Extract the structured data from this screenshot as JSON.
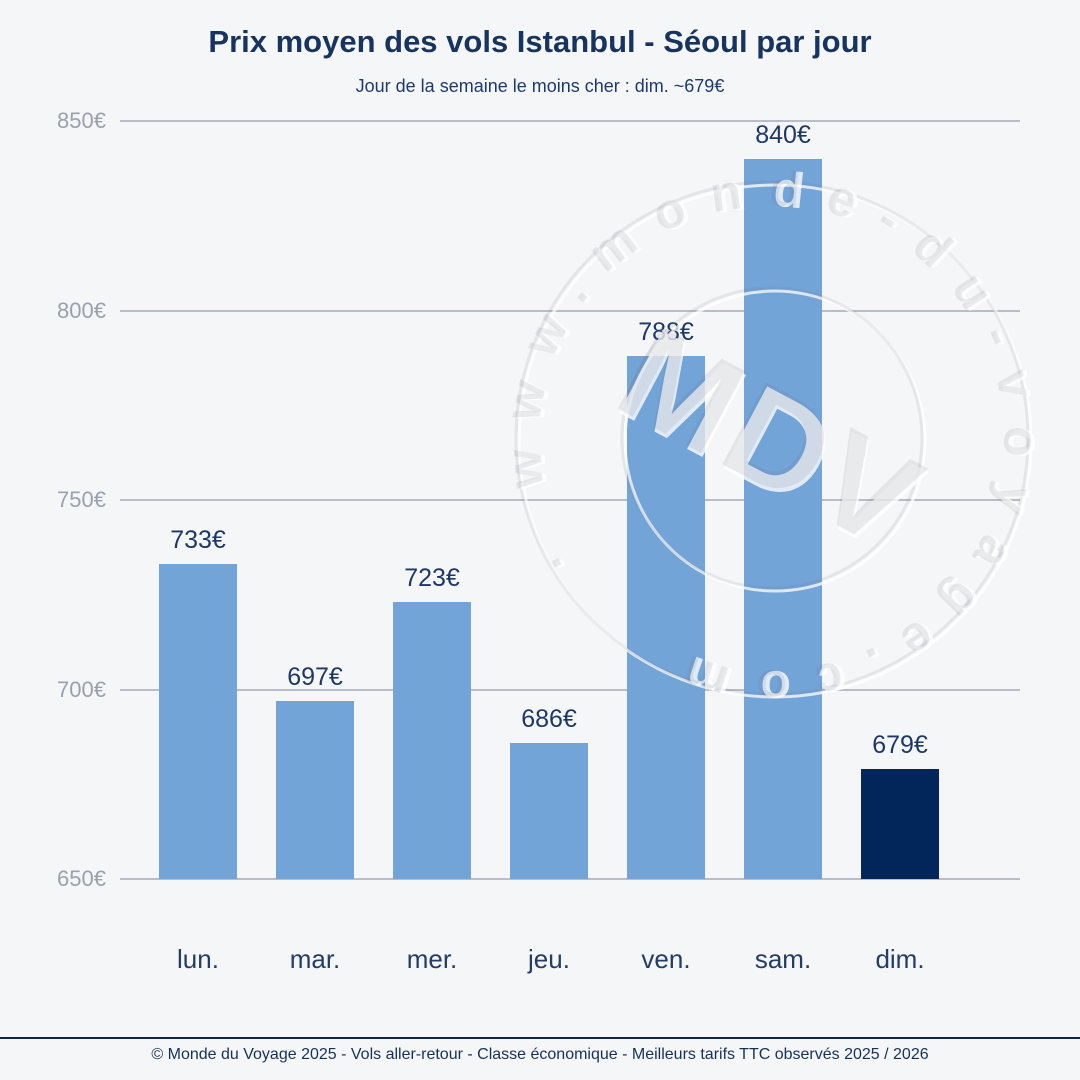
{
  "page": {
    "title": "Prix moyen des vols Istanbul - Séoul par jour",
    "subtitle": "Jour de la semaine le moins cher : dim. ~679€",
    "footer": "© Monde du Voyage 2025 - Vols aller-retour - Classe économique - Meilleurs tarifs TTC observés 2025 / 2026"
  },
  "watermark": {
    "circular_text": "· www.monde-du-voyage.com",
    "center_text": "MDV"
  },
  "chart_data": {
    "type": "bar",
    "title": "Prix moyen des vols Istanbul - Séoul par jour",
    "subtitle": "Jour de la semaine le moins cher : dim. ~679€",
    "categories": [
      "lun.",
      "mar.",
      "mer.",
      "jeu.",
      "ven.",
      "sam.",
      "dim."
    ],
    "values": [
      733,
      697,
      723,
      686,
      788,
      840,
      679
    ],
    "value_labels": [
      "733€",
      "697€",
      "723€",
      "686€",
      "788€",
      "840€",
      "679€"
    ],
    "bar_colors": [
      "#73a4d8",
      "#73a4d8",
      "#73a4d8",
      "#73a4d8",
      "#73a4d8",
      "#73a4d8",
      "#02265a"
    ],
    "highlight_index": 6,
    "ylim": [
      650,
      850
    ],
    "yticks": [
      850,
      800,
      750,
      700,
      650
    ],
    "ytick_labels": [
      "850€",
      "800€",
      "750€",
      "700€",
      "650€"
    ],
    "xlabel": "",
    "ylabel": "",
    "grid": true,
    "legend": false,
    "colors": {
      "background": "#f5f6f7",
      "bar_default": "#73a4d8",
      "bar_highlight": "#02265a",
      "grid": "#b9bdc7",
      "title": "#17335f",
      "axis_labels": "#9aa0ad"
    }
  }
}
